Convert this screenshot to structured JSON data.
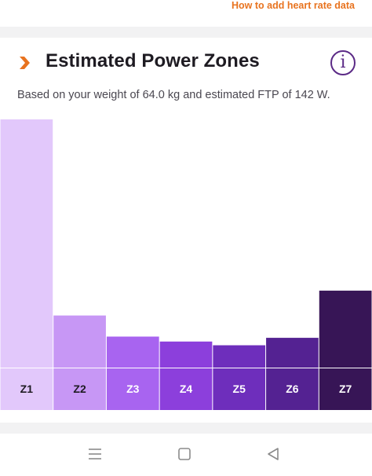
{
  "top_link": {
    "label": "How to add heart rate data"
  },
  "section": {
    "title": "Estimated Power Zones",
    "subtitle": "Based on your weight of 64.0 kg and estimated FTP of 142 W.",
    "header_icon": "chevron-right-icon",
    "info_icon": "info-icon"
  },
  "chart_data": {
    "type": "bar",
    "categories": [
      "Z1",
      "Z2",
      "Z3",
      "Z4",
      "Z5",
      "Z6",
      "Z7"
    ],
    "values": [
      100,
      21,
      12.5,
      10.5,
      9,
      12,
      31
    ],
    "value_unit": "relative bar height, % of tallest bar",
    "ylim": [
      0,
      100
    ],
    "title": "",
    "xlabel": "",
    "ylabel": "",
    "grid": false,
    "legend": "none",
    "colors": [
      "#e2c8fb",
      "#c797f5",
      "#a864f0",
      "#8c3fdc",
      "#6e2ebc",
      "#542292",
      "#371556"
    ],
    "label_colors": [
      "#1e1b22",
      "#1e1b22",
      "#ffffff",
      "#ffffff",
      "#ffffff",
      "#ffffff",
      "#ffffff"
    ]
  },
  "nav": {
    "recent_icon": "menu-icon",
    "home_icon": "square-icon",
    "back_icon": "triangle-back-icon"
  },
  "colors": {
    "accent_orange": "#e8731f",
    "brand_purple": "#5b2a86"
  }
}
